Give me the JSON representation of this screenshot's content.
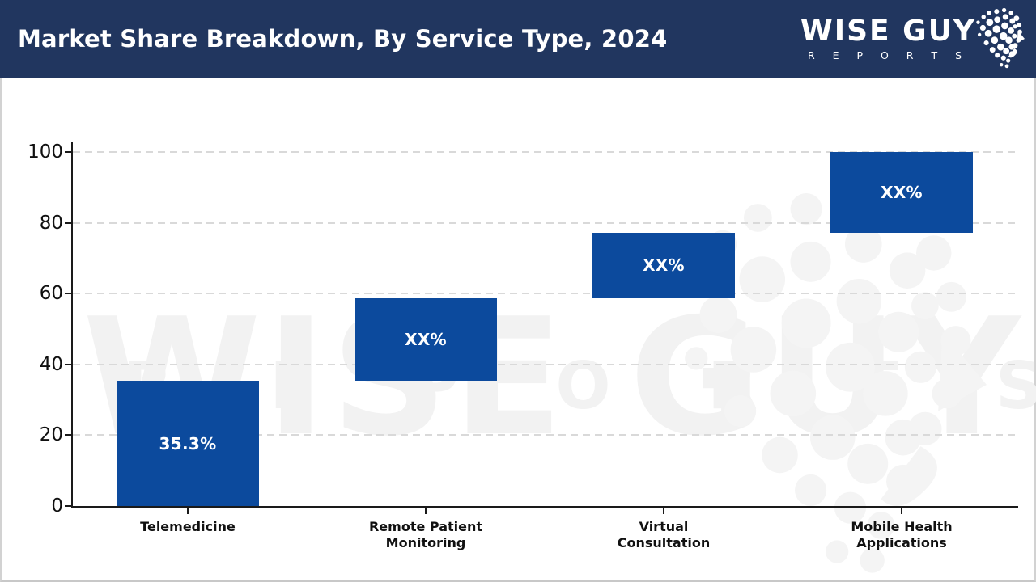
{
  "header": {
    "title": "Market Share Breakdown, By Service Type, 2024",
    "logo": {
      "name": "WISE GUY",
      "subname": "R E P O R T S"
    }
  },
  "watermark": {
    "line1": "WISE GUY",
    "line2": "R E P O R T S"
  },
  "chart_data": {
    "type": "bar",
    "subtype": "waterfall",
    "title": "Market Share Breakdown, By Service Type, 2024",
    "categories": [
      [
        "Telemedicine"
      ],
      [
        "Remote Patient",
        "Monitoring"
      ],
      [
        "Virtual",
        "Consultation"
      ],
      [
        "Mobile Health",
        "Applications"
      ]
    ],
    "segments": [
      {
        "name": "Telemedicine",
        "start": 0,
        "end": 35.3,
        "label": "35.3%"
      },
      {
        "name": "Remote Patient Monitoring",
        "start": 35.3,
        "end": 58.7,
        "label": "XX%"
      },
      {
        "name": "Virtual Consultation",
        "start": 58.7,
        "end": 77.2,
        "label": "XX%"
      },
      {
        "name": "Mobile Health Applications",
        "start": 77.2,
        "end": 100,
        "label": "XX%"
      }
    ],
    "ylim": [
      0,
      100
    ],
    "yticks": [
      0,
      20,
      40,
      60,
      80,
      100
    ],
    "grid": "horizontal-dashed",
    "legend": "none",
    "bar_color": "#0c4a9d"
  },
  "colors": {
    "header_bg": "#21365f",
    "bar": "#0c4a9d",
    "grid": "#d9d9d9",
    "axis": "#1a1a1a",
    "watermark": "#f2f2f2"
  }
}
